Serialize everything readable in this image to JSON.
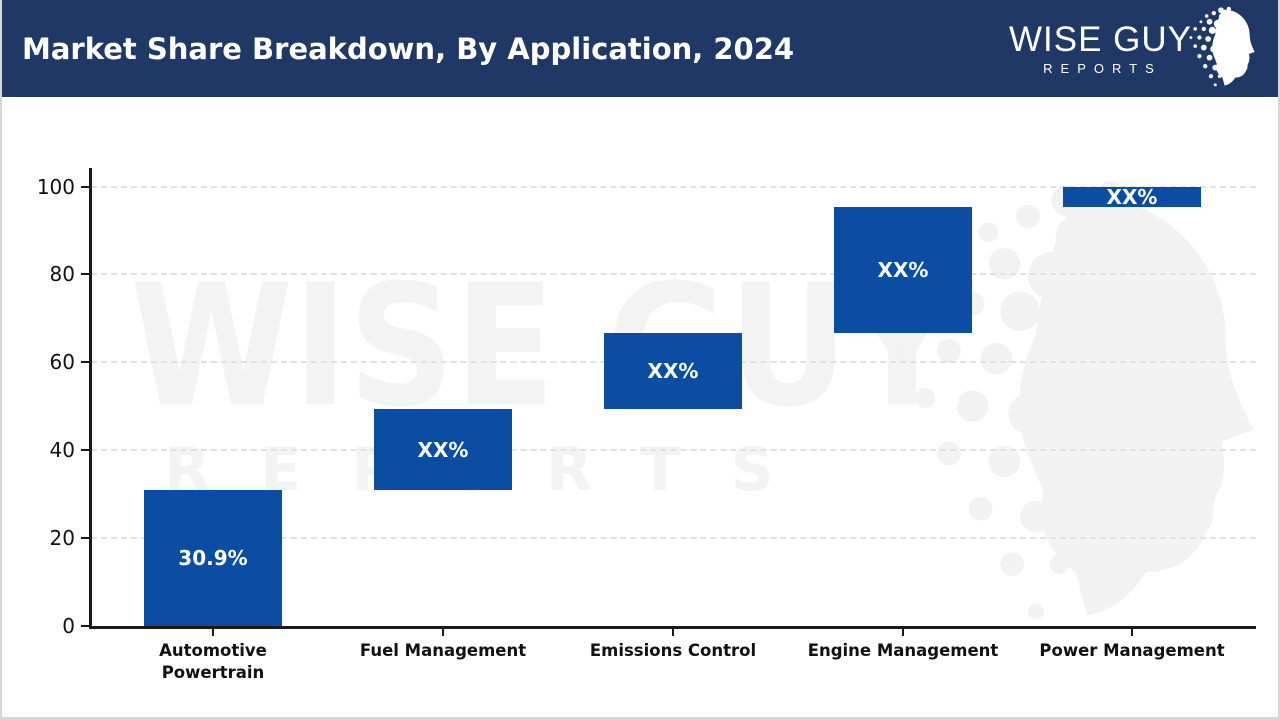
{
  "header": {
    "title": "Market Share Breakdown, By Application, 2024",
    "logo": {
      "line1": "WISE GUY",
      "line2": "REPORTS"
    }
  },
  "watermark": {
    "line1": "WISE GUY",
    "line2": "REPORTS"
  },
  "colors": {
    "header_bg": "#1f3866",
    "bar": "#0b4da2",
    "bar_label": "#ffffff",
    "gridline": "#e0e0e0",
    "axis": "#1a1a1a",
    "watermark": "#f3f3f3"
  },
  "chart_data": {
    "type": "bar",
    "subtype": "waterfall",
    "title": "Market Share Breakdown, By Application, 2024",
    "xlabel": "",
    "ylabel": "",
    "ylim": [
      0,
      105
    ],
    "yticks": [
      0,
      20,
      40,
      60,
      80,
      100
    ],
    "grid": "horizontal-dashed",
    "legend": "none",
    "categories": [
      "Automotive Powertrain",
      "Fuel Management",
      "Emissions Control",
      "Engine Management",
      "Power Management"
    ],
    "series": [
      {
        "name": "Market Share",
        "segments": [
          {
            "category": "Automotive Powertrain",
            "start": 0,
            "end": 30.9,
            "value": 30.9,
            "label": "30.9%"
          },
          {
            "category": "Fuel Management",
            "start": 30.9,
            "end": 49.4,
            "value": 18.5,
            "label": "XX%"
          },
          {
            "category": "Emissions Control",
            "start": 49.4,
            "end": 66.6,
            "value": 17.2,
            "label": "XX%"
          },
          {
            "category": "Engine Management",
            "start": 66.6,
            "end": 95.3,
            "value": 28.7,
            "label": "XX%"
          },
          {
            "category": "Power Management",
            "start": 95.3,
            "end": 100,
            "value": 4.7,
            "label": "XX%"
          }
        ]
      }
    ]
  }
}
